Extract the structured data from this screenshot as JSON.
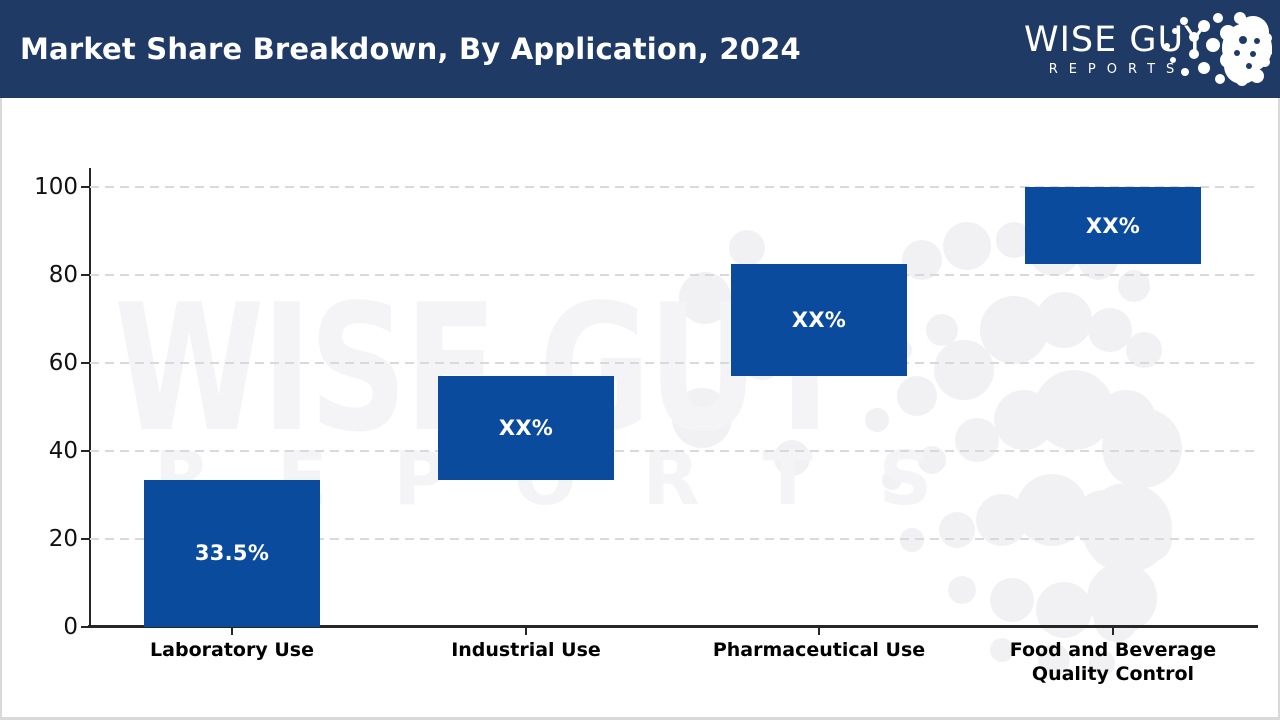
{
  "header": {
    "title": "Market Share Breakdown, By Application, 2024",
    "bg_color": "#203a66",
    "logo": {
      "name": "WISE GUY",
      "sub": "REPORTS"
    }
  },
  "watermark": {
    "line1": "WISE GUY",
    "line2": "REPORTS"
  },
  "chart_data": {
    "type": "bar",
    "subtype": "waterfall",
    "title": "Market Share Breakdown, By Application, 2024",
    "categories": [
      "Laboratory Use",
      "Industrial Use",
      "Pharmaceutical Use",
      "Food and Beverage Quality Control"
    ],
    "series": [
      {
        "name": "Market share (%)",
        "segments": [
          {
            "category": "Laboratory Use",
            "start": 0,
            "end": 33.5,
            "label": "33.5%"
          },
          {
            "category": "Industrial Use",
            "start": 33.5,
            "end": 57,
            "label": "XX%"
          },
          {
            "category": "Pharmaceutical Use",
            "start": 57,
            "end": 82.5,
            "label": "XX%"
          },
          {
            "category": "Food and Beverage Quality Control",
            "start": 82.5,
            "end": 100,
            "label": "XX%"
          }
        ]
      }
    ],
    "xlabel": "",
    "ylabel": "",
    "ylim": [
      0,
      105
    ],
    "yticks": [
      0,
      20,
      40,
      60,
      80,
      100
    ],
    "grid": "horizontal-dashed",
    "legend": "none",
    "bar_color": "#0b4b9e",
    "bar_label_color": "#ffffff",
    "axis_color": "#262626",
    "gridline_color": "#d9d9d9"
  }
}
